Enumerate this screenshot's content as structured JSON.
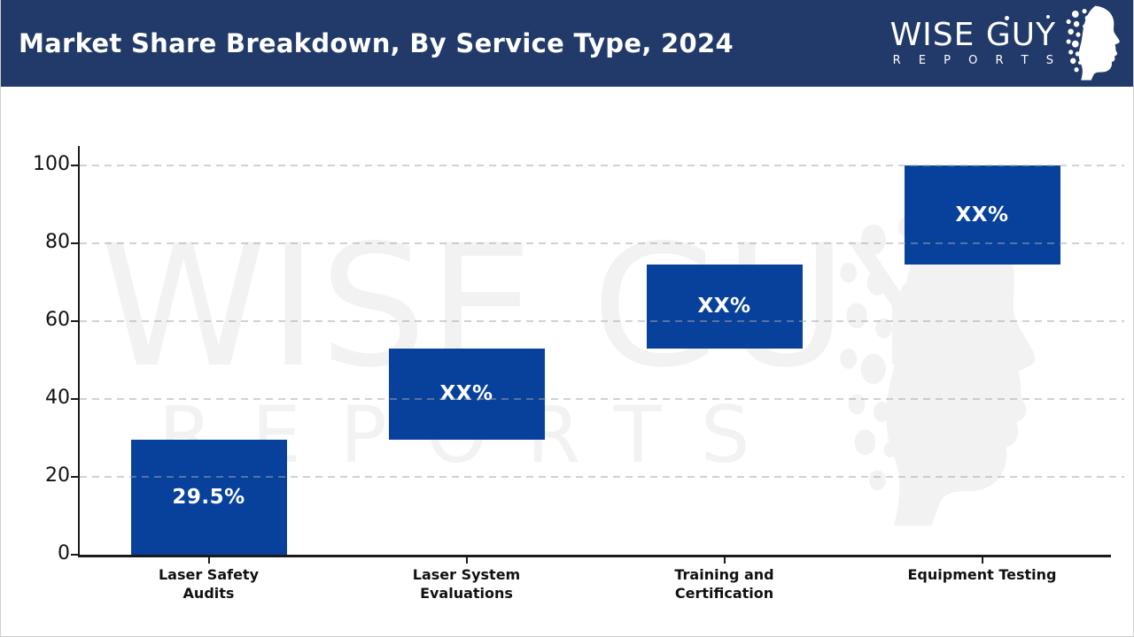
{
  "header": {
    "title": "Market Share Breakdown, By Service Type, 2024",
    "logo": {
      "name": "WISE GUY",
      "sub": "R E P O R T S"
    }
  },
  "watermark": {
    "name": "WISE GUY",
    "sub": "REPORTS"
  },
  "colors": {
    "header_bg": "#213A69",
    "bar": "#08419C",
    "bar_label": "#FFFFFF",
    "axis": "#1A1A1A",
    "grid": "rgba(165,165,165,0.5)",
    "watermark": "#F2F2F2",
    "title_text": "#FFFFFF"
  },
  "chart_data": {
    "type": "bar",
    "subtype": "waterfall",
    "title": "Market Share Breakdown, By Service Type, 2024",
    "categories": [
      "Laser Safety\nAudits",
      "Laser System\nEvaluations",
      "Training and\nCertification",
      "Equipment Testing"
    ],
    "segments": [
      {
        "category": "Laser Safety Audits",
        "start": 0,
        "end": 29.5,
        "label": "29.5%"
      },
      {
        "category": "Laser System Evaluations",
        "start": 29.5,
        "end": 53,
        "label": "XX%"
      },
      {
        "category": "Training and Certification",
        "start": 53,
        "end": 74.5,
        "label": "XX%"
      },
      {
        "category": "Equipment Testing",
        "start": 74.5,
        "end": 100,
        "label": "XX%"
      }
    ],
    "yticks": [
      0,
      20,
      40,
      60,
      80,
      100
    ],
    "ylim": [
      0,
      105
    ],
    "xlabel": "",
    "ylabel": "",
    "grid": "horizontal-dashed",
    "legend": "none"
  }
}
